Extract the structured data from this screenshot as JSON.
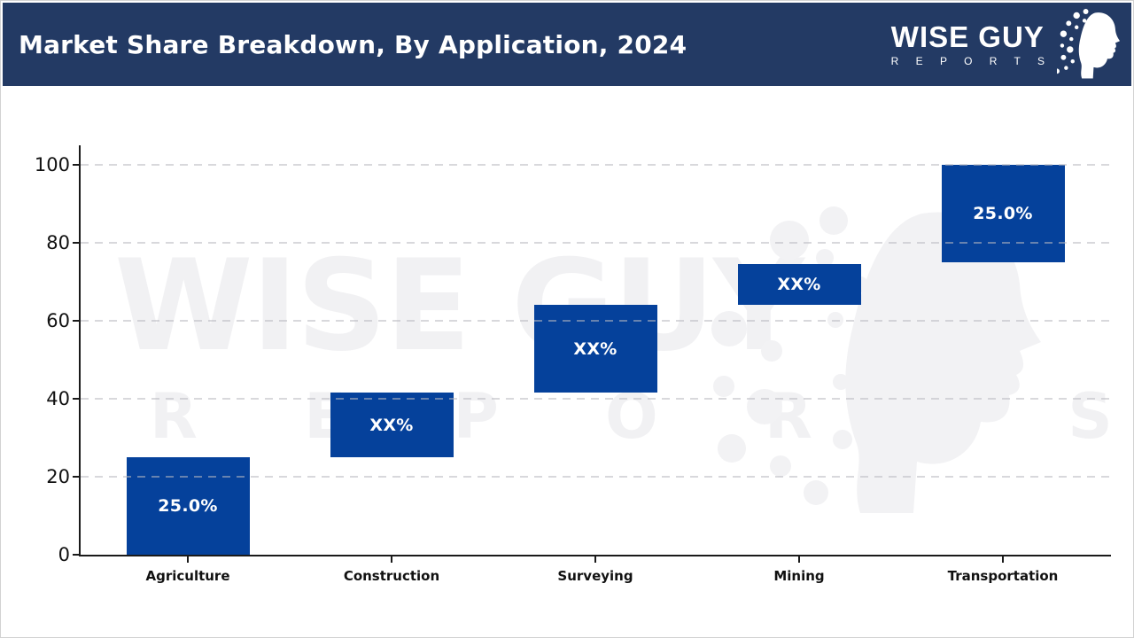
{
  "header": {
    "title": "Market Share Breakdown, By Application, 2024",
    "background_color": "#233a64",
    "logo": {
      "line1": "WISE GUY",
      "line2": "R E P O R T S"
    }
  },
  "watermark": {
    "line1": "WISE GUY",
    "line2": "REPORTS"
  },
  "chart_data": {
    "type": "bar",
    "subtype": "floating-waterfall",
    "title": "Market Share Breakdown, By Application, 2024",
    "categories": [
      "Agriculture",
      "Construction",
      "Surveying",
      "Mining",
      "Transportation"
    ],
    "segments": [
      {
        "category": "Agriculture",
        "start": 0,
        "end": 25,
        "label": "25.0%"
      },
      {
        "category": "Construction",
        "start": 25,
        "end": 41.5,
        "label": "XX%"
      },
      {
        "category": "Surveying",
        "start": 41.5,
        "end": 64,
        "label": "XX%"
      },
      {
        "category": "Mining",
        "start": 64,
        "end": 74.5,
        "label": "XX%"
      },
      {
        "category": "Transportation",
        "start": 75,
        "end": 100,
        "label": "25.0%"
      }
    ],
    "yticks": [
      0,
      20,
      40,
      60,
      80,
      100
    ],
    "ylim": [
      0,
      105
    ],
    "xlabel": "",
    "ylabel": "",
    "grid": "horizontal-dashed",
    "legend": "none",
    "bar_color": "#05419b",
    "bar_label_color": "#ffffff",
    "axis_color": "#1a1a1a",
    "tick_label_color": "#111111",
    "gridline_color": "#d9d9d9"
  }
}
